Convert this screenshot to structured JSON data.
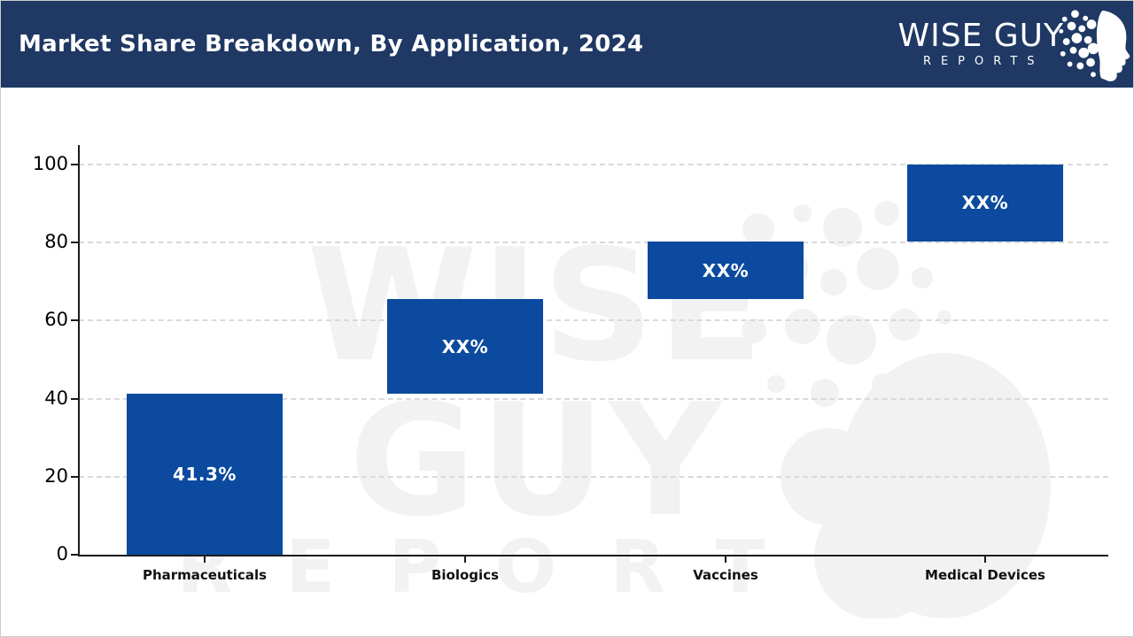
{
  "header": {
    "title": "Market Share Breakdown, By Application, 2024",
    "logo": {
      "line1": "WISE GUY",
      "line2": "REPORTS"
    }
  },
  "watermark": {
    "line1": "WISE GUY",
    "line2": "REPORTS"
  },
  "chart_data": {
    "type": "bar",
    "subtype": "waterfall",
    "title": "Market Share Breakdown, By Application, 2024",
    "categories": [
      "Pharmaceuticals",
      "Biologics",
      "Vaccines",
      "Medical Devices"
    ],
    "segments": [
      {
        "category": "Pharmaceuticals",
        "start": 0,
        "end": 41.3,
        "label": "41.3%"
      },
      {
        "category": "Biologics",
        "start": 41.3,
        "end": 65.5,
        "label": "XX%"
      },
      {
        "category": "Vaccines",
        "start": 65.5,
        "end": 80.3,
        "label": "XX%"
      },
      {
        "category": "Medical Devices",
        "start": 80.3,
        "end": 100,
        "label": "XX%"
      }
    ],
    "y_ticks": [
      0,
      20,
      40,
      60,
      80,
      100
    ],
    "ylim": [
      0,
      105
    ],
    "xlabel": "",
    "ylabel": "",
    "grid": "horizontal-dashed",
    "legend": "none",
    "bar_color": "#0B4A9E",
    "bar_label_color": "#FFFFFF"
  },
  "colors": {
    "header_bg": "#1F3864",
    "bar": "#0B4A9E",
    "axis": "#1A1A1A",
    "grid": "#D9D9D9",
    "watermark": "#F2F2F2",
    "title_text": "#FFFFFF"
  }
}
